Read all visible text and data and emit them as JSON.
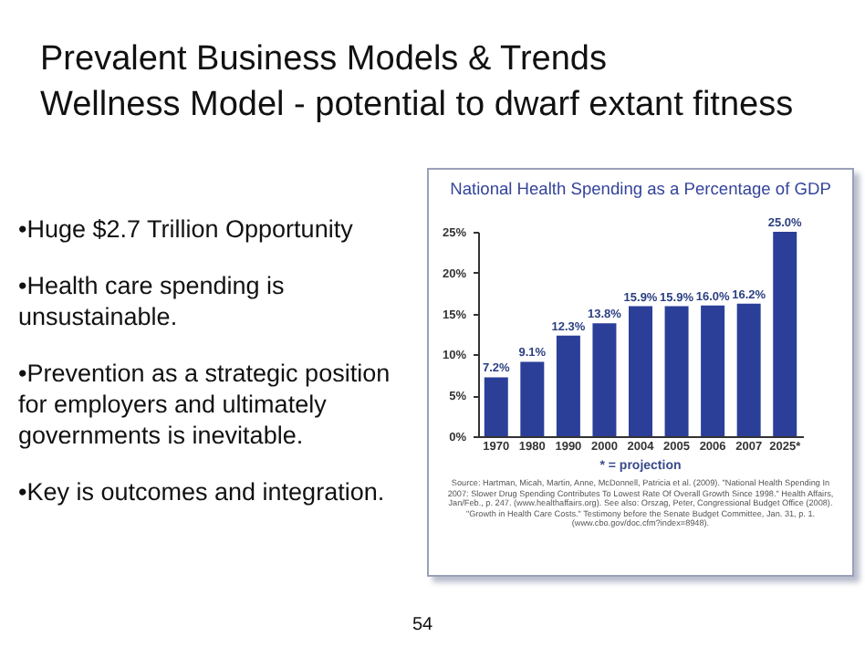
{
  "chart_data": {
    "type": "bar",
    "title": "National Health Spending as a Percentage of GDP",
    "categories": [
      "1970",
      "1980",
      "1990",
      "2000",
      "2004",
      "2005",
      "2006",
      "2007",
      "2025*"
    ],
    "values": [
      7.2,
      9.1,
      12.3,
      13.8,
      15.9,
      15.9,
      16.0,
      16.2,
      25.0
    ],
    "value_labels": [
      "7.2%",
      "9.1%",
      "12.3%",
      "13.8%",
      "15.9%",
      "15.9%",
      "16.0%",
      "16.2%",
      "25.0%"
    ],
    "color": "#2b3f99",
    "ylim": [
      0,
      25
    ],
    "yticks": [
      {
        "value": 0,
        "label": "0%"
      },
      {
        "value": 5,
        "label": "5%"
      },
      {
        "value": 10,
        "label": "10%"
      },
      {
        "value": 15,
        "label": "15%"
      },
      {
        "value": 20,
        "label": "20%"
      },
      {
        "value": 25,
        "label": "25%"
      }
    ],
    "grid": false,
    "annotations": [
      "Prevalent Business Models  & Trends",
      "Wellness Model - potential to dwarf extant fitness",
      "•Huge $2.7 Trillion Opportunity",
      "•Health care spending is unsustainable.",
      "•Prevention as a strategic position for employers and ultimately governments is inevitable.",
      "•Key is outcomes and integration.",
      "* = projection",
      "Source: Hartman, Micah, Martin, Anne, McDonnell, Patricia et al. (2009). \"National Health Spending In 2007: Slower Drug Spending Contributes To Lowest Rate Of Overall Growth Since 1998.\" Health Affairs, Jan/Feb., p. 247. (www.healthaffairs.org). See also: Orszag, Peter, Congressional Budget Office (2008). \"Growth in Health Care Costs.\" Testimony before the Senate Budget Committee, Jan. 31, p. 1. (www.cbo.gov/doc.cfm?index=8948).",
      "54"
    ]
  }
}
